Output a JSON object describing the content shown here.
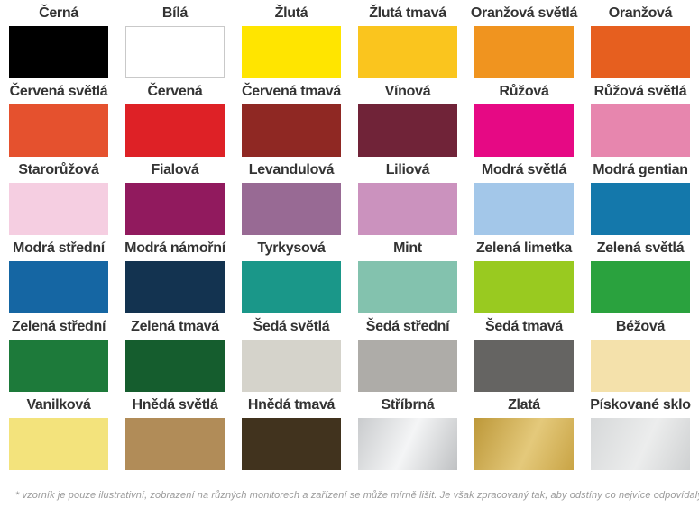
{
  "page": {
    "background": "#ffffff",
    "label_color": "#333333",
    "note_color": "#9a9a9a",
    "footer_note": "* vzorník je pouze ilustrativní, zobrazení na různých monitorech a zařízení se může mírně lišit. Je však zpracovaný tak, aby odstíny co nejvíce odpovídaly."
  },
  "swatches": [
    {
      "label": "Černá",
      "color": "#000000"
    },
    {
      "label": "Bílá",
      "color": "#ffffff",
      "border": "#c9c9c9"
    },
    {
      "label": "Žlutá",
      "color": "#ffe500"
    },
    {
      "label": "Žlutá tmavá",
      "color": "#fac51e"
    },
    {
      "label": "Oranžová světlá",
      "color": "#f0941f"
    },
    {
      "label": "Oranžová",
      "color": "#e65f1f"
    },
    {
      "label": "Červená světlá",
      "color": "#e5512e"
    },
    {
      "label": "Červená",
      "color": "#de2126"
    },
    {
      "label": "Červená tmavá",
      "color": "#8f2823"
    },
    {
      "label": "Vínová",
      "color": "#702338"
    },
    {
      "label": "Růžová",
      "color": "#e60984"
    },
    {
      "label": "Růžová světlá",
      "color": "#e786ae"
    },
    {
      "label": "Starorůžová",
      "color": "#f5cee1"
    },
    {
      "label": "Fialová",
      "color": "#911a5e"
    },
    {
      "label": "Levandulová",
      "color": "#986a94"
    },
    {
      "label": "Liliová",
      "color": "#cb92be"
    },
    {
      "label": "Modrá světlá",
      "color": "#a3c7e9"
    },
    {
      "label": "Modrá gentian",
      "color": "#1478ab"
    },
    {
      "label": "Modrá střední",
      "color": "#1566a3"
    },
    {
      "label": "Modrá námořní",
      "color": "#133350"
    },
    {
      "label": "Tyrkysová",
      "color": "#1a9789"
    },
    {
      "label": "Mint",
      "color": "#83c2ae"
    },
    {
      "label": "Zelená limetka",
      "color": "#99ca20"
    },
    {
      "label": "Zelená světlá",
      "color": "#2aa23e"
    },
    {
      "label": "Zelená střední",
      "color": "#1d7a3a"
    },
    {
      "label": "Zelená tmavá",
      "color": "#155d2e"
    },
    {
      "label": "Šedá světlá",
      "color": "#d5d3cb"
    },
    {
      "label": "Šedá střední",
      "color": "#aeaca8"
    },
    {
      "label": "Šedá tmavá",
      "color": "#656462"
    },
    {
      "label": "Béžová",
      "color": "#f4e1ab"
    },
    {
      "label": "Vanilková",
      "color": "#f3e37c"
    },
    {
      "label": "Hnědá světlá",
      "color": "#b18c58"
    },
    {
      "label": "Hnědá tmavá",
      "color": "#41331e"
    },
    {
      "label": "Stříbrná",
      "gradient": {
        "angle": 115,
        "stops": [
          "#c9cbcd 0%",
          "#f4f5f6 50%",
          "#bfc1c3 100%"
        ]
      }
    },
    {
      "label": "Zlatá",
      "gradient": {
        "angle": 115,
        "stops": [
          "#bd9839 0%",
          "#e4c97b 55%",
          "#c9a445 100%"
        ]
      }
    },
    {
      "label": "Pískované sklo",
      "gradient": {
        "angle": 115,
        "stops": [
          "#d6d8d9 0%",
          "#eceded 55%",
          "#cfd1d2 100%"
        ]
      }
    }
  ]
}
